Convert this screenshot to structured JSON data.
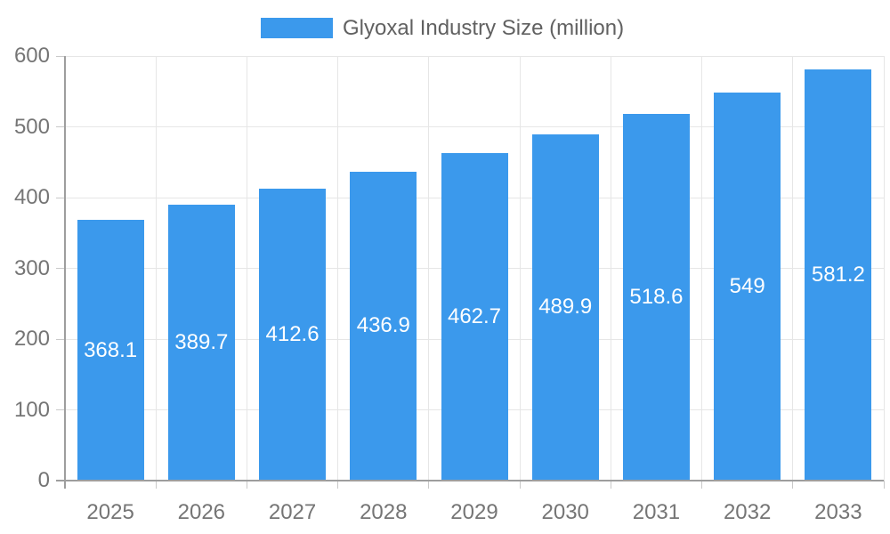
{
  "chart_data": {
    "type": "bar",
    "title": "Glyoxal Industry Size (million)",
    "categories": [
      "2025",
      "2026",
      "2027",
      "2028",
      "2029",
      "2030",
      "2031",
      "2032",
      "2033"
    ],
    "values": [
      368.1,
      389.7,
      412.6,
      436.9,
      462.7,
      489.9,
      518.6,
      549,
      581.2
    ],
    "value_labels": [
      "368.1",
      "389.7",
      "412.6",
      "436.9",
      "462.7",
      "489.9",
      "518.6",
      "549",
      "581.2"
    ],
    "series_name": "Glyoxal Industry Size (million)",
    "xlabel": "",
    "ylabel": "",
    "ylim": [
      0,
      600
    ],
    "y_ticks": [
      0,
      100,
      200,
      300,
      400,
      500,
      600
    ],
    "y_tick_labels": [
      "0",
      "100",
      "200",
      "300",
      "400",
      "500",
      "600"
    ],
    "grid": "horizontal and vertical category dividers",
    "legend_position": "top-center",
    "value_label_position": "centered inside bar",
    "colors": {
      "bar": "#3b99ec",
      "axis_line": "#9e9e9e",
      "gridline": "#e6e6e6",
      "tick": "#c9c9c9",
      "axis_label": "#757575",
      "legend_text": "#616161",
      "value_label": "#ffffff",
      "background": "#ffffff"
    }
  }
}
